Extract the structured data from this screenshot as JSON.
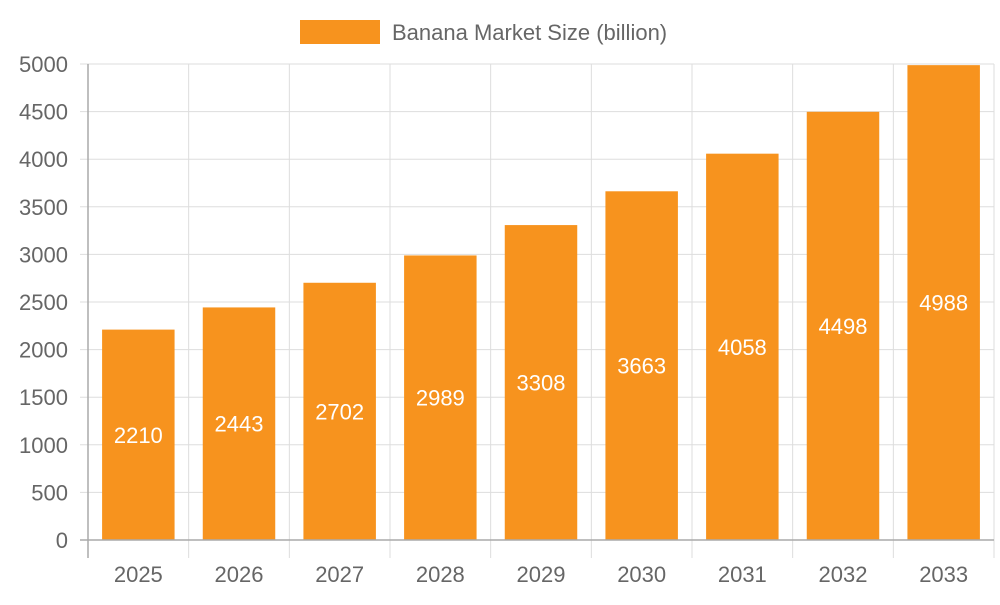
{
  "chart_data": {
    "type": "bar",
    "categories": [
      "2025",
      "2026",
      "2027",
      "2028",
      "2029",
      "2030",
      "2031",
      "2032",
      "2033"
    ],
    "series": [
      {
        "name": "Banana Market Size (billion)",
        "values": [
          2210,
          2443,
          2702,
          2989,
          3308,
          3663,
          4058,
          4498,
          4988
        ],
        "color": "#f7931e"
      }
    ],
    "ylim": [
      0,
      5000
    ],
    "yticks": [
      0,
      500,
      1000,
      1500,
      2000,
      2500,
      3000,
      3500,
      4000,
      4500,
      5000
    ],
    "legend_position": "top-center",
    "grid": true,
    "data_labels": true
  },
  "colors": {
    "bar": "#f7931e",
    "grid": "#dddddd",
    "axis": "#aaaaaa",
    "tick_text": "#666666",
    "data_label_text": "#ffffff"
  }
}
